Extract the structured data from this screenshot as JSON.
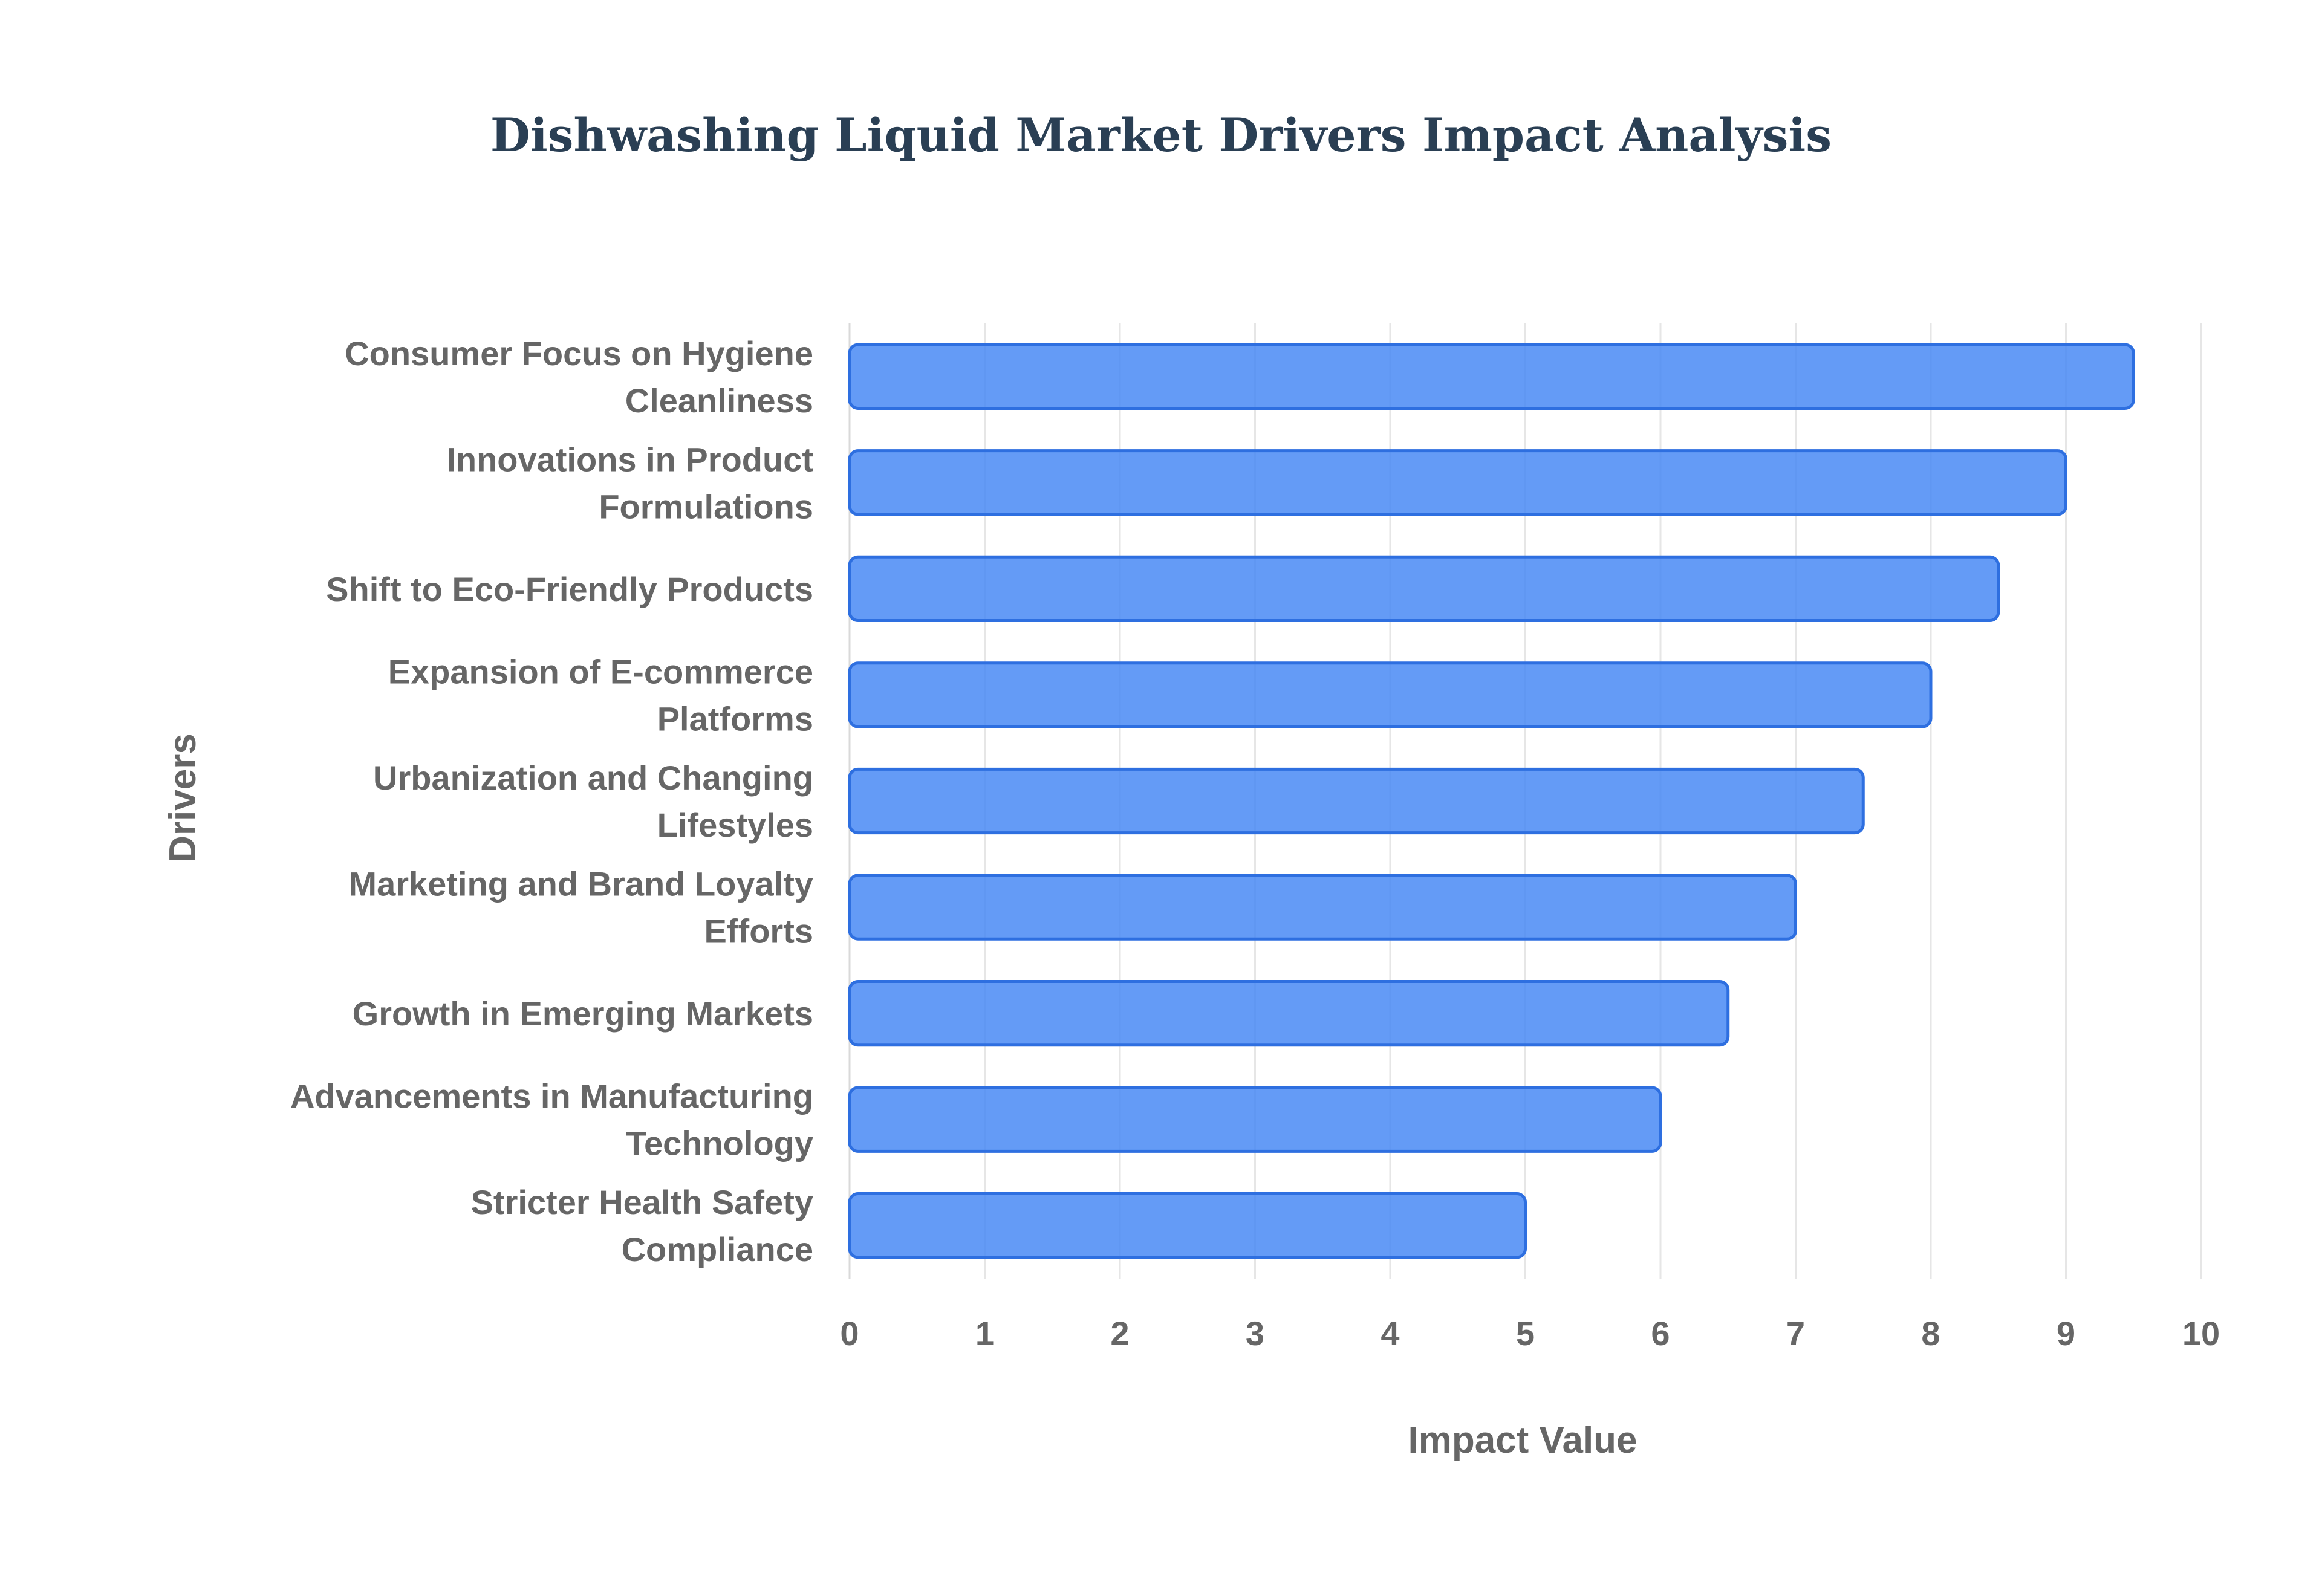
{
  "chart_data": {
    "type": "bar",
    "orientation": "horizontal",
    "title": "Dishwashing Liquid Market Drivers Impact Analysis",
    "xlabel": "Impact Value",
    "ylabel": "Drivers",
    "xlim": [
      0,
      10
    ],
    "ticks": [
      "0",
      "1",
      "2",
      "3",
      "4",
      "5",
      "6",
      "7",
      "8",
      "9",
      "10"
    ],
    "grid": true,
    "legend": "none",
    "categories": [
      [
        "Consumer Focus on Hygiene",
        "Cleanliness"
      ],
      [
        "Innovations in Product",
        "Formulations"
      ],
      [
        "Shift to Eco-Friendly Products"
      ],
      [
        "Expansion of E-commerce",
        "Platforms"
      ],
      [
        "Urbanization and Changing",
        "Lifestyles"
      ],
      [
        "Marketing and Brand Loyalty",
        "Efforts"
      ],
      [
        "Growth in Emerging Markets"
      ],
      [
        "Advancements in Manufacturing",
        "Technology"
      ],
      [
        "Stricter Health Safety",
        "Compliance"
      ]
    ],
    "values": [
      9.5,
      9.0,
      8.5,
      8.0,
      7.5,
      7.0,
      6.5,
      6.0,
      5.0
    ],
    "colors": {
      "bar_fill": "#4285f4",
      "bar_fill_opacity": 0.82,
      "bar_stroke": "#2e6fe0"
    }
  }
}
